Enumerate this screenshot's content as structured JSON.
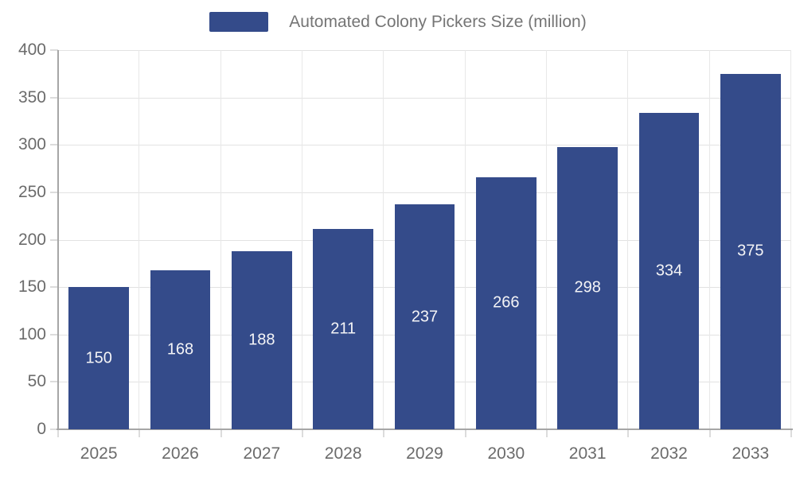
{
  "legend": {
    "label": "Automated Colony Pickers Size (million)"
  },
  "colors": {
    "bar": "#344b8a",
    "bar_label": "#f4f4f6",
    "axis_line": "#a6a6a6",
    "grid_line_h": "#e2e2e2",
    "grid_line_v": "#e8e8e8",
    "tick": "#dcdcdc",
    "axis_text": "#6b6b6b",
    "legend_text": "#757575",
    "background": "#ffffff"
  },
  "chart_data": {
    "type": "bar",
    "title": "",
    "xlabel": "",
    "ylabel": "",
    "series_name": "Automated Colony Pickers Size (million)",
    "categories": [
      "2025",
      "2026",
      "2027",
      "2028",
      "2029",
      "2030",
      "2031",
      "2032",
      "2033"
    ],
    "values": [
      150,
      168,
      188,
      211,
      237,
      266,
      298,
      334,
      375
    ],
    "ylim": [
      0,
      400
    ],
    "yticks": [
      0,
      50,
      100,
      150,
      200,
      250,
      300,
      350,
      400
    ],
    "grid": true,
    "legend_position": "top-center",
    "bar_label_position": "inside-center"
  }
}
